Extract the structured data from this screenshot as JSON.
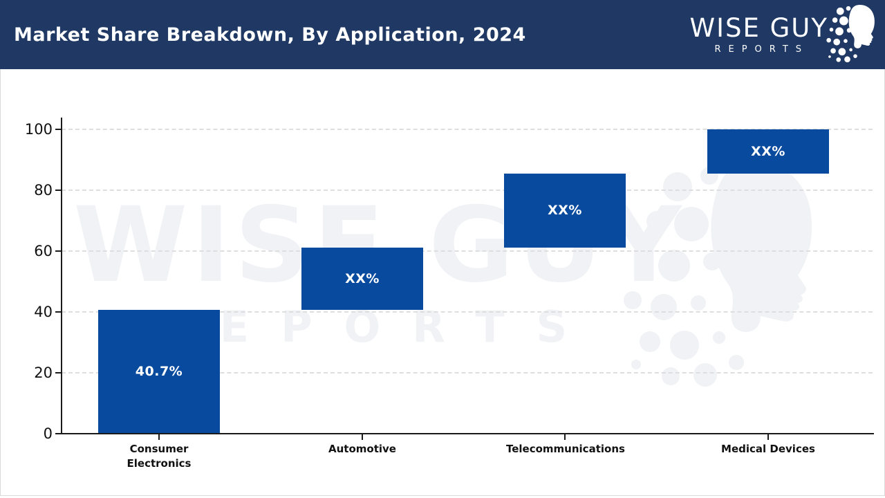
{
  "header": {
    "title": "Market Share Breakdown, By Application, 2024",
    "logo": {
      "title": "WISE GUY",
      "subtitle": "REPORTS"
    }
  },
  "watermark": {
    "title": "WISE GUY",
    "subtitle": "REPORTS"
  },
  "colors": {
    "header_bg": "#1f3864",
    "bar": "#084a9e",
    "bar_label": "#ffffff",
    "gridline": "#dedede",
    "axis": "#1a1a1a",
    "tick_label": "#111111",
    "watermark": "#f1f2f5",
    "background": "#ffffff"
  },
  "chart_data": {
    "type": "bar",
    "subtype": "waterfall",
    "title": "Market Share Breakdown, By Application, 2024",
    "xlabel": "",
    "ylabel": "",
    "categories": [
      "Consumer Electronics",
      "Automotive",
      "Telecommunications",
      "Medical Devices"
    ],
    "segments": [
      {
        "start": 0,
        "end": 40.7,
        "value": 40.7
      },
      {
        "start": 40.7,
        "end": 61.1,
        "value": 20.4
      },
      {
        "start": 61.1,
        "end": 85.5,
        "value": 24.4
      },
      {
        "start": 85.5,
        "end": 100,
        "value": 14.5
      }
    ],
    "bar_labels": [
      "40.7%",
      "XX%",
      "XX%",
      "XX%"
    ],
    "ylim": [
      0,
      100
    ],
    "yticks": [
      0,
      20,
      40,
      60,
      80,
      100
    ],
    "grid": "horizontal-dashed",
    "legend": "none"
  }
}
